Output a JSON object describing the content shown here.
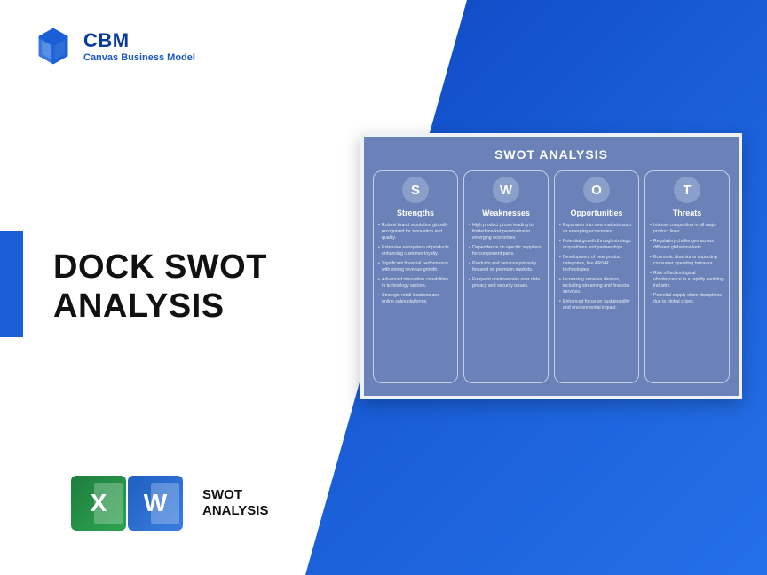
{
  "brand": {
    "title": "CBM",
    "subtitle": "Canvas Business Model",
    "color_primary": "#0d47c2",
    "color_text": "#083a9e"
  },
  "main": {
    "title_line1": "DOCK SWOT",
    "title_line2": "ANALYSIS"
  },
  "icons": {
    "excel_letter": "X",
    "word_letter": "W",
    "label_line1": "SWOT",
    "label_line2": "ANALYSIS",
    "excel_color": "#2ea44f",
    "word_color": "#3a7ee0"
  },
  "swot": {
    "title": "SWOT ANALYSIS",
    "background": "#6b82b8",
    "circle_color": "#8a9fc9",
    "columns": [
      {
        "letter": "S",
        "heading": "Strengths",
        "items": [
          "Robust brand reputation globally recognized for innovation and quality.",
          "Extensive ecosystem of products enhancing customer loyalty.",
          "Significant financial performance with strong revenue growth.",
          "Advanced innovation capabilities in technology sectors.",
          "Strategic retail locations and online sales platforms."
        ]
      },
      {
        "letter": "W",
        "heading": "Weaknesses",
        "items": [
          "High product prices leading to limited market penetration in emerging economies.",
          "Dependence on specific suppliers for component parts.",
          "Products and services primarily focused on premium markets.",
          "Frequent controversies over data privacy and security issues."
        ]
      },
      {
        "letter": "O",
        "heading": "Opportunities",
        "items": [
          "Expansion into new markets such as emerging economies.",
          "Potential growth through strategic acquisitions and partnerships.",
          "Development of new product categories, like AR/VR technologies.",
          "Increasing services division, including streaming and financial services.",
          "Enhanced focus on sustainability and environmental impact."
        ]
      },
      {
        "letter": "T",
        "heading": "Threats",
        "items": [
          "Intense competition in all major product lines.",
          "Regulatory challenges across different global markets.",
          "Economic downturns impacting consumer spending behavior.",
          "Risk of technological obsolescence in a rapidly evolving industry.",
          "Potential supply chain disruptions due to global crises."
        ]
      }
    ]
  }
}
